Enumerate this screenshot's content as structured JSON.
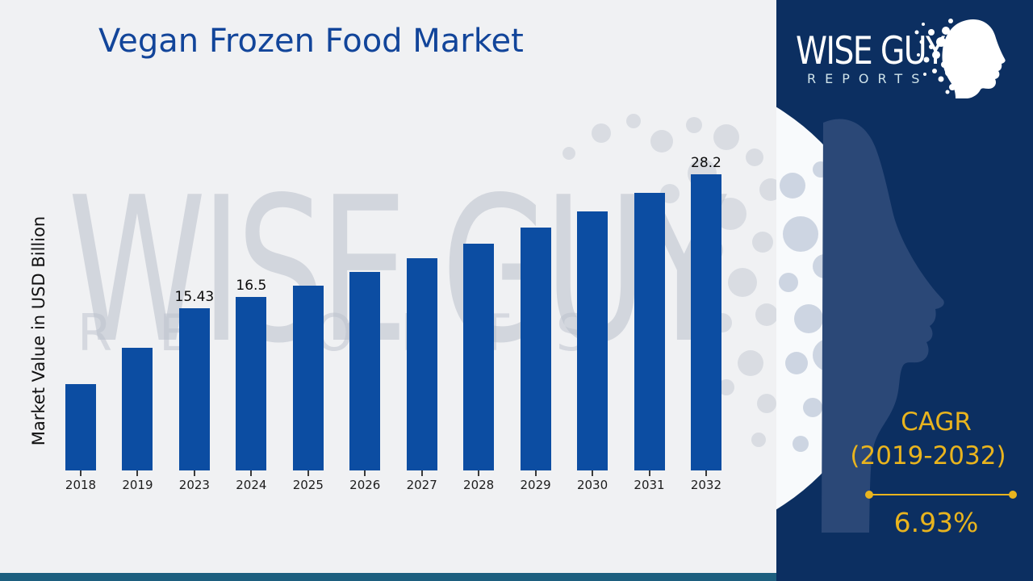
{
  "header": {
    "title": "Vegan Frozen Food Market"
  },
  "axis": {
    "y_label": "Market Value in USD Billion"
  },
  "watermark": {
    "line1": "WISE GUY",
    "line2": "REPORTS"
  },
  "logo": {
    "line1": "WISE GUY",
    "line2": "REPORTS"
  },
  "sidebar": {
    "cagr_label": "CAGR",
    "cagr_period": "(2019-2032)",
    "cagr_value": "6.93%"
  },
  "colors": {
    "bar_blue": "#0c4da2",
    "title_blue": "#12459a",
    "panel_navy": "#0c2f61",
    "accent_yellow": "#e9b41e",
    "teal_strip": "#1d5f7f",
    "circle_white": "#f8fafc",
    "face_blue": "#2b4877"
  },
  "chart_data": {
    "type": "bar",
    "title": "Vegan Frozen Food Market",
    "ylabel": "Market Value in USD Billion",
    "xlabel": "",
    "categories": [
      "2018",
      "2019",
      "2023",
      "2024",
      "2025",
      "2026",
      "2027",
      "2028",
      "2029",
      "2030",
      "2031",
      "2032"
    ],
    "values": [
      8.2,
      11.7,
      15.43,
      16.5,
      17.6,
      18.9,
      20.2,
      21.6,
      23.1,
      24.6,
      26.4,
      28.2
    ],
    "point_labels": {
      "2023": "15.43",
      "2024": "16.5",
      "2032": "28.2"
    },
    "ylim": [
      0,
      30
    ],
    "grid": false,
    "legend_position": "none",
    "bar_color": "#0c4da2",
    "cagr": {
      "period": "2019-2032",
      "value_percent": 6.93
    }
  }
}
